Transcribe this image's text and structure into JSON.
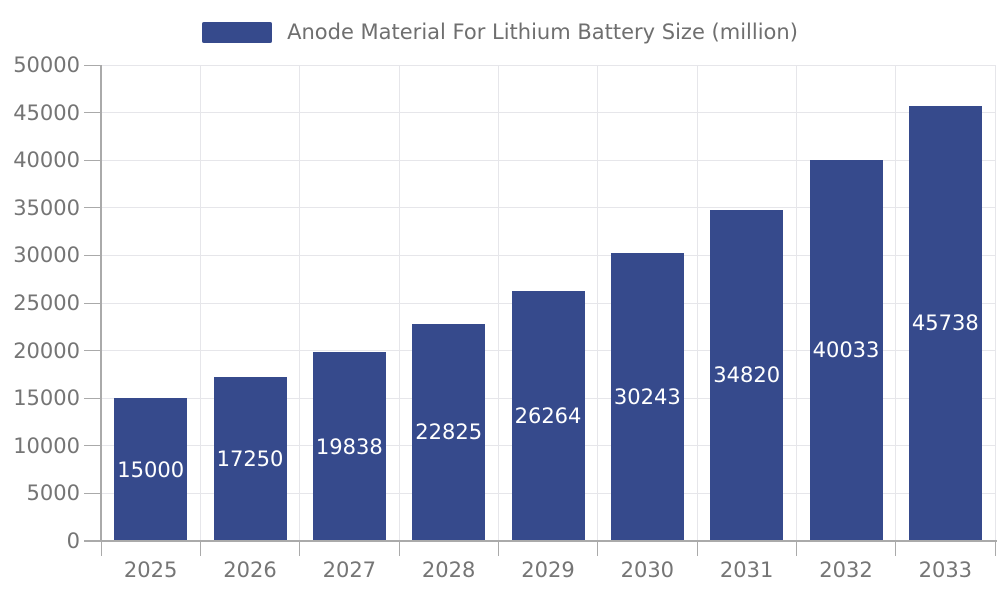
{
  "legend": {
    "label": "Anode Material For Lithium Battery Size (million)"
  },
  "chart_data": {
    "type": "bar",
    "title": "Anode Material For Lithium Battery Size (million)",
    "series_name": "Anode Material For Lithium Battery Size (million)",
    "categories": [
      "2025",
      "2026",
      "2027",
      "2028",
      "2029",
      "2030",
      "2031",
      "2032",
      "2033"
    ],
    "values": [
      15000,
      17250,
      19838,
      22825,
      26264,
      30243,
      34820,
      40033,
      45738
    ],
    "xlabel": "",
    "ylabel": "",
    "ylim": [
      0,
      50000
    ],
    "ytick_step": 5000,
    "ytick_labels": [
      "0",
      "5000",
      "10000",
      "15000",
      "20000",
      "25000",
      "30000",
      "35000",
      "40000",
      "45000",
      "50000"
    ],
    "grid": true,
    "legend_position": "top",
    "bar_labels_inside": true
  },
  "colors": {
    "bar": "#364a8c",
    "bar_label": "#ffffff",
    "grid": "#e6e6ea",
    "axis": "#aaaaaa",
    "tick_label": "#757575",
    "legend_text": "#6f6f6f",
    "background": "#ffffff"
  }
}
